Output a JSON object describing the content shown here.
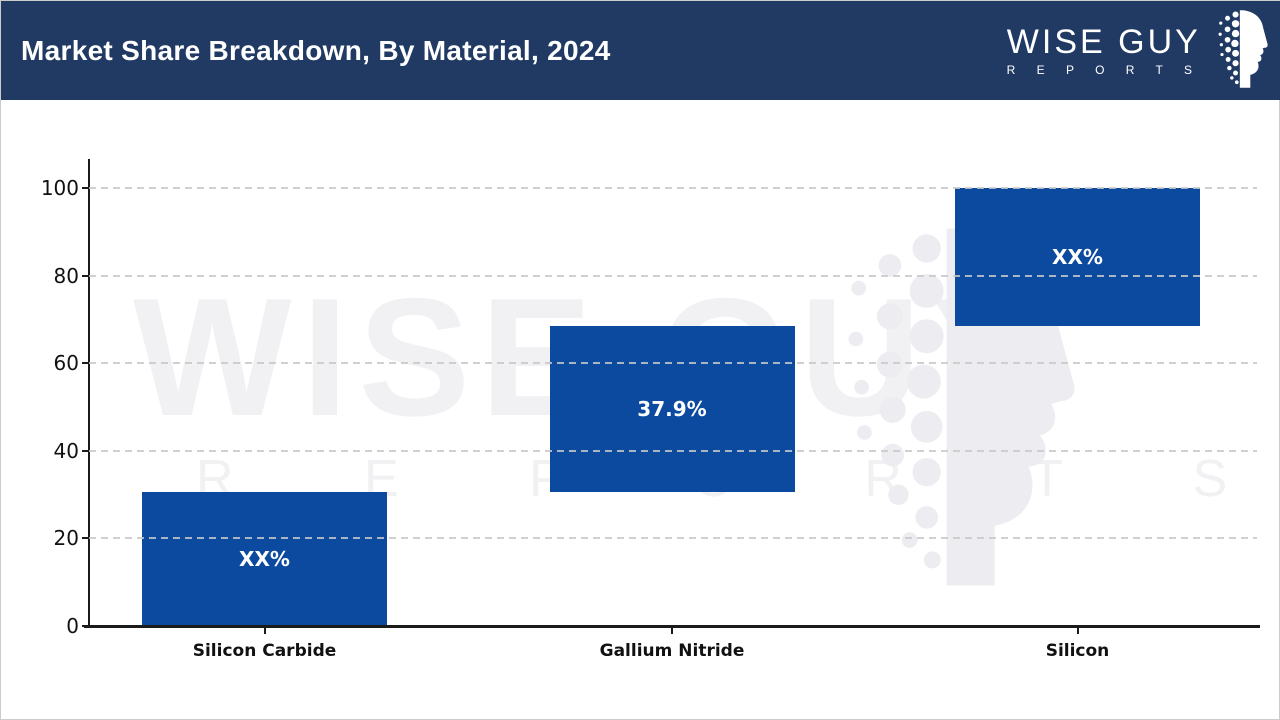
{
  "page": {
    "background": "#ffffff",
    "border_color": "#cccccc"
  },
  "header": {
    "bg_color": "#213a64",
    "title": "Market Share Breakdown, By Material, 2024",
    "logo": {
      "name": "WISE GUY",
      "sub": "R E P O R T S"
    }
  },
  "watermark": {
    "text": "WISE GUY",
    "sub": "R E P O R T S"
  },
  "chart_data": {
    "type": "bar",
    "subtype": "floating-segment waterfall (stacked breakdown, one segment per category)",
    "title": "Market Share Breakdown, By Material, 2024",
    "categories": [
      "Silicon Carbide",
      "Gallium Nitride",
      "Silicon"
    ],
    "segments": [
      {
        "category": "Silicon Carbide",
        "start": 0,
        "end": 30.5,
        "label": "XX%"
      },
      {
        "category": "Gallium Nitride",
        "start": 30.5,
        "end": 68.4,
        "label": "37.9%",
        "value": 37.9
      },
      {
        "category": "Silicon",
        "start": 68.4,
        "end": 100,
        "label": "XX%"
      }
    ],
    "ylim": [
      0,
      100
    ],
    "yticks": [
      0,
      20,
      40,
      60,
      80,
      100
    ],
    "xlabel": "",
    "ylabel": "",
    "legend": "none",
    "grid": {
      "axis": "y",
      "style": "dashed",
      "color": "#cccccc",
      "above_bars": true
    },
    "bar_color": "#0b4a9f",
    "bar_label_color": "#ffffff",
    "axis_color": "#1a1a1a"
  }
}
